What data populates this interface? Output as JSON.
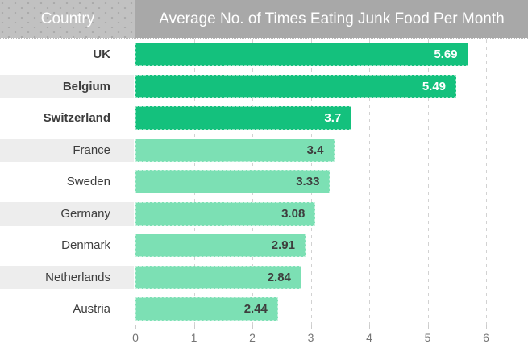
{
  "header": {
    "country_label": "Country",
    "metric_label": "Average No. of Times Eating Junk Food Per Month"
  },
  "chart_data": {
    "type": "bar",
    "orientation": "horizontal",
    "title": "Average No. of Times Eating Junk Food Per Month",
    "categories": [
      "UK",
      "Belgium",
      "Switzerland",
      "France",
      "Sweden",
      "Germany",
      "Denmark",
      "Netherlands",
      "Austria"
    ],
    "values": [
      5.69,
      5.49,
      3.7,
      3.4,
      3.33,
      3.08,
      2.91,
      2.84,
      2.44
    ],
    "value_labels": [
      "5.69",
      "5.49",
      "3.7",
      "3.4",
      "3.33",
      "3.08",
      "2.91",
      "2.84",
      "2.44"
    ],
    "emphasized": [
      true,
      true,
      true,
      false,
      false,
      false,
      false,
      false,
      false
    ],
    "xlim": [
      0,
      6
    ],
    "x_ticks": [
      "0",
      "1",
      "2",
      "3",
      "4",
      "5",
      "6"
    ],
    "grid": "dashed-vertical-gridlines",
    "legend": "none"
  },
  "colors": {
    "bar_emphasis": "#14c17d",
    "bar_normal": "#7ce0b4",
    "header_left_bg": "#c1c1c1",
    "header_right_bg": "#a8a8a8",
    "header_text": "#ffffff",
    "row_alt_bg": "#ededed",
    "label_text": "#3e3e3e",
    "value_text_on_emphasis": "#ffffff",
    "value_text_on_normal": "#3e3e3e",
    "gridline": "#d2d2d2",
    "axis_text": "#757575"
  }
}
